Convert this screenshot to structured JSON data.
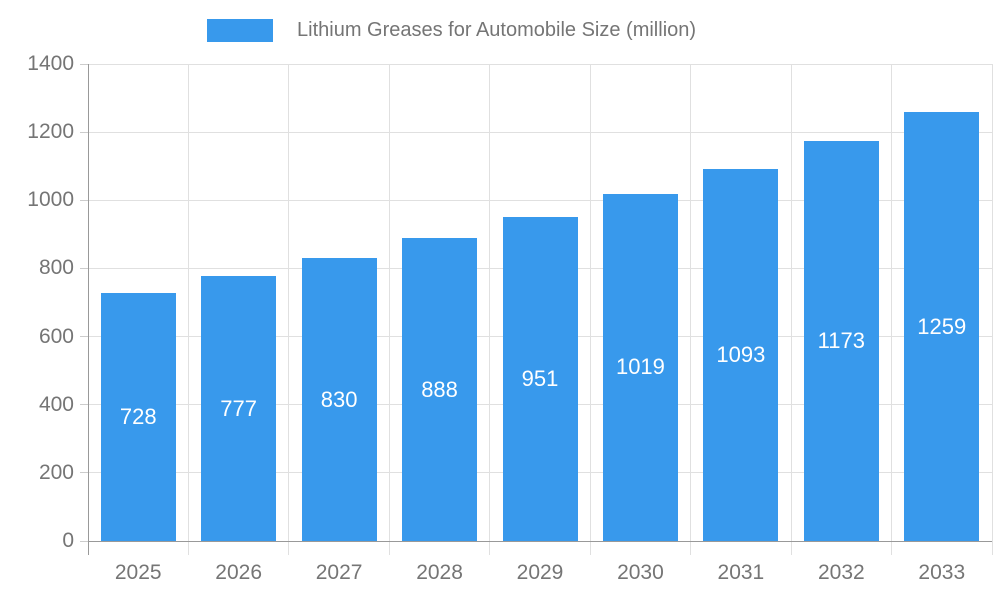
{
  "legend": {
    "label": "Lithium Greases for Automobile Size (million)"
  },
  "chart_data": {
    "type": "bar",
    "title": "Lithium Greases for Automobile Size (million)",
    "categories": [
      "2025",
      "2026",
      "2027",
      "2028",
      "2029",
      "2030",
      "2031",
      "2032",
      "2033"
    ],
    "values": [
      728,
      777,
      830,
      888,
      951,
      1019,
      1093,
      1173,
      1259
    ],
    "xlabel": "",
    "ylabel": "",
    "ylim": [
      0,
      1400
    ],
    "yticks": [
      0,
      200,
      400,
      600,
      800,
      1000,
      1200,
      1400
    ],
    "grid": true,
    "legend_position": "top",
    "value_label_position": "centered-inside-bars",
    "colors": {
      "bar": "#3899EC",
      "grid": "#E0E0E0",
      "axis": "#999999",
      "tick": "#CCCCCC",
      "text": "#757575",
      "value_label": "#FFFFFF",
      "background": "#FFFFFF"
    }
  }
}
